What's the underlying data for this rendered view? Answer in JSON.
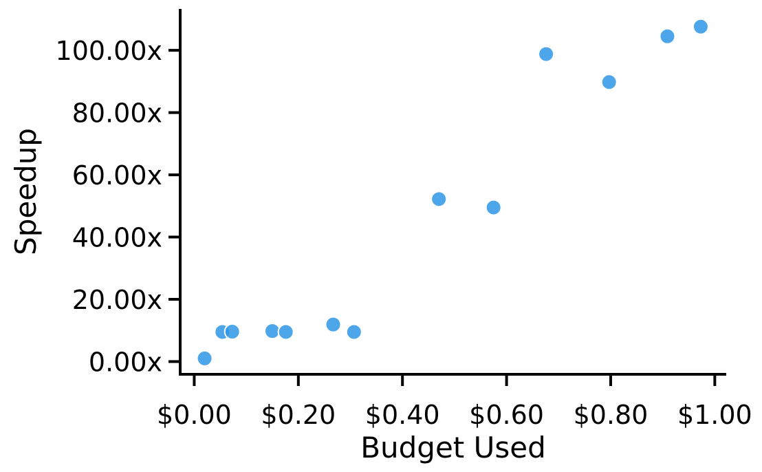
{
  "figure": {
    "background": "#ffffff",
    "axis_color": "#000000",
    "text_color": "#000000"
  },
  "chart_data": {
    "type": "scatter",
    "title": "",
    "xlabel": "Budget Used",
    "ylabel": "Speedup",
    "points": [
      {
        "x": 0.02,
        "y": 1.0
      },
      {
        "x": 0.054,
        "y": 9.5
      },
      {
        "x": 0.073,
        "y": 9.6
      },
      {
        "x": 0.15,
        "y": 9.8
      },
      {
        "x": 0.176,
        "y": 9.5
      },
      {
        "x": 0.267,
        "y": 11.9
      },
      {
        "x": 0.307,
        "y": 9.5
      },
      {
        "x": 0.47,
        "y": 52.2
      },
      {
        "x": 0.575,
        "y": 49.5
      },
      {
        "x": 0.676,
        "y": 98.8
      },
      {
        "x": 0.797,
        "y": 89.8
      },
      {
        "x": 0.909,
        "y": 104.5
      },
      {
        "x": 0.973,
        "y": 107.6
      }
    ],
    "x_ticks": {
      "values": [
        0,
        0.2,
        0.4,
        0.6,
        0.8,
        1.0
      ],
      "labels": [
        "$0.00",
        "$0.20",
        "$0.40",
        "$0.60",
        "$0.80",
        "$1.00"
      ]
    },
    "y_ticks": {
      "values": [
        0,
        20,
        40,
        60,
        80,
        100
      ],
      "labels": [
        "0.00x",
        "20.00x",
        "40.00x",
        "60.00x",
        "80.00x",
        "100.00x"
      ]
    },
    "xlim": [
      -0.027,
      1.022
    ],
    "ylim": [
      -4.1,
      113.3
    ],
    "grid": false,
    "legend": null,
    "marker": {
      "color": "#2e96e6",
      "opacity": 0.85,
      "edge_color": "#ffffff",
      "edge_width": 2,
      "radius": 11
    }
  }
}
